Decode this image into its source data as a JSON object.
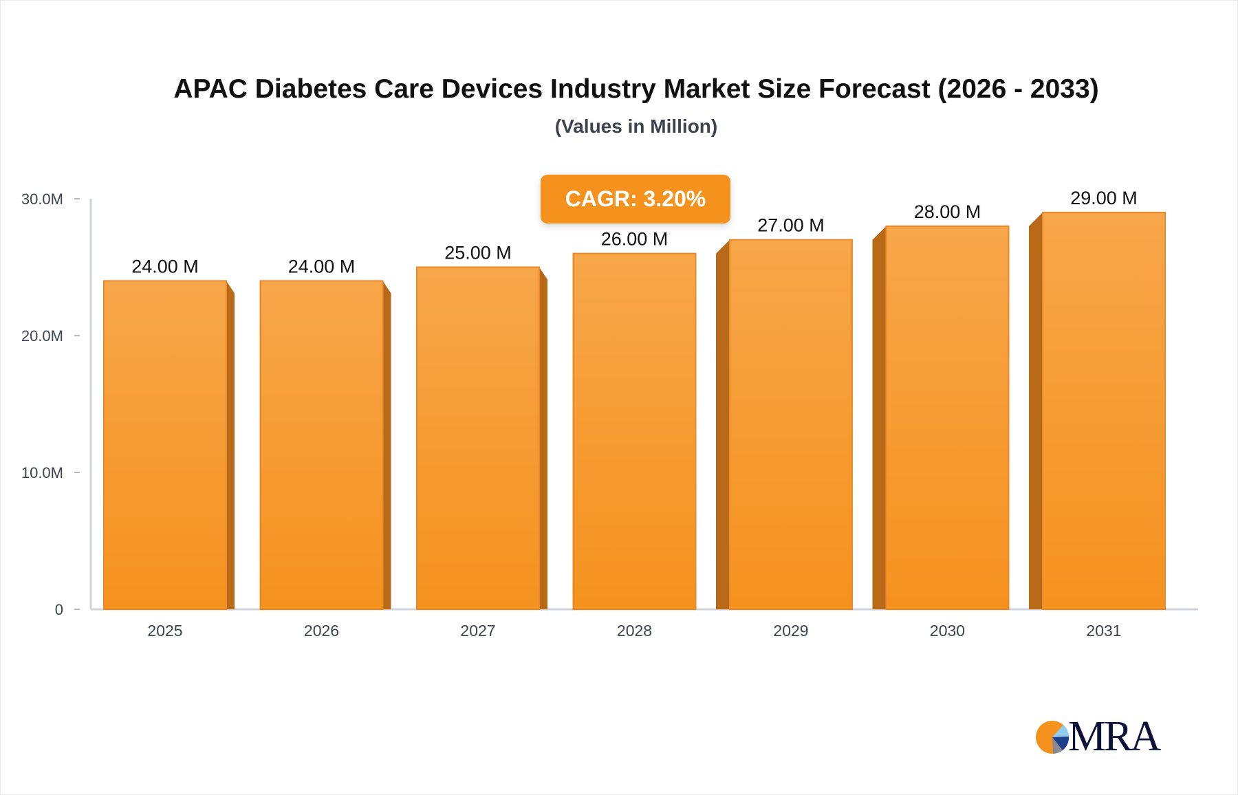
{
  "chart_data": {
    "type": "bar",
    "title": "APAC Diabetes Care Devices Industry Market Size Forecast (2026 - 2033)",
    "subtitle": "(Values in Million)",
    "categories": [
      "2025",
      "2026",
      "2027",
      "2028",
      "2029",
      "2030",
      "2031"
    ],
    "values": [
      24.0,
      24.0,
      25.0,
      26.0,
      27.0,
      28.0,
      29.0
    ],
    "data_labels": [
      "24.00 M",
      "24.00 M",
      "25.00 M",
      "26.00 M",
      "27.00 M",
      "28.00 M",
      "29.00 M"
    ],
    "y_ticks": [
      "0",
      "10.0M",
      "20.0M",
      "30.0M"
    ],
    "ylim": [
      0,
      30
    ],
    "xlabel": "",
    "ylabel": "",
    "grid": false,
    "annotation": "CAGR: 3.20%",
    "colors": {
      "bar_front": "#f7a445",
      "bar_bottom": "#f5921e",
      "bar_side": "#b96a18",
      "axis": "#d0d3da"
    }
  },
  "logo": {
    "text": "MRA"
  }
}
